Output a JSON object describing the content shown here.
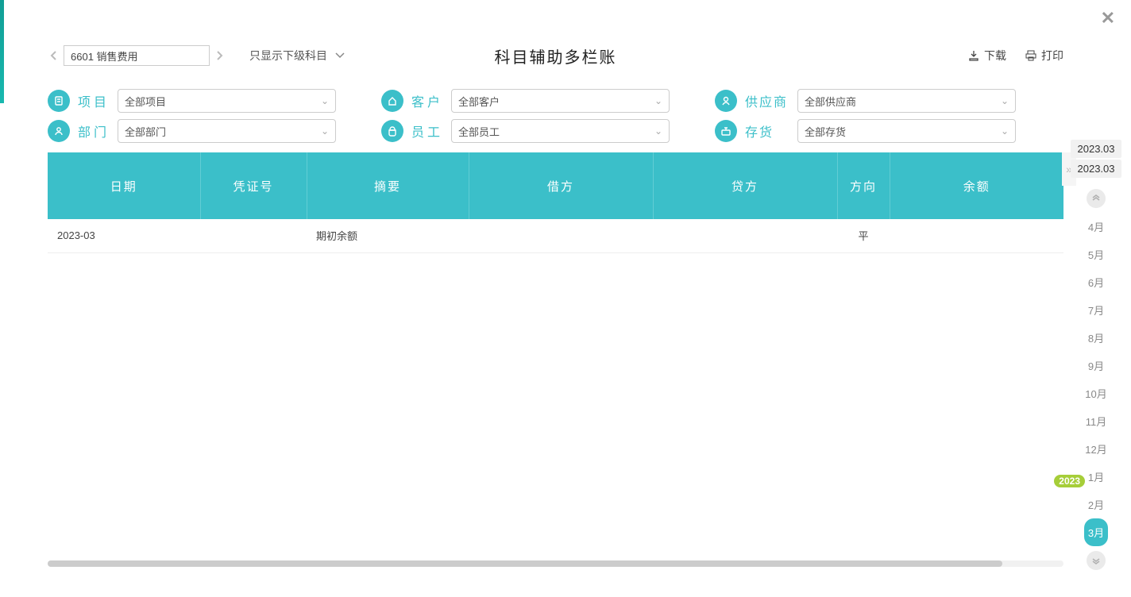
{
  "page_title": "科目辅助多栏账",
  "subject": {
    "code_name": "6601 销售费用"
  },
  "display_mode": "只显示下级科目",
  "actions": {
    "download": "下载",
    "print": "打印"
  },
  "filters": {
    "project": {
      "label": "项目",
      "selected": "全部项目"
    },
    "customer": {
      "label": "客户",
      "selected": "全部客户"
    },
    "supplier": {
      "label": "供应商",
      "selected": "全部供应商"
    },
    "department": {
      "label": "部门",
      "selected": "全部部门"
    },
    "employee": {
      "label": "员工",
      "selected": "全部员工"
    },
    "inventory": {
      "label": "存货",
      "selected": "全部存货"
    }
  },
  "table": {
    "columns": {
      "date": "日期",
      "voucher_no": "凭证号",
      "abstract": "摘要",
      "debit": "借方",
      "credit": "贷方",
      "direction": "方向",
      "balance": "余额"
    },
    "rows": [
      {
        "date": "2023-03",
        "voucher_no": "",
        "abstract": "期初余额",
        "debit": "",
        "credit": "",
        "direction": "平",
        "balance": ""
      }
    ]
  },
  "period": {
    "from": "2023.03",
    "to": "2023.03"
  },
  "year_chip": "2023",
  "months": [
    "4月",
    "5月",
    "6月",
    "7月",
    "8月",
    "9月",
    "10月",
    "11月",
    "12月",
    "1月",
    "2月",
    "3月"
  ],
  "active_month": "3月",
  "colors": {
    "accent": "#3bbfc9"
  }
}
